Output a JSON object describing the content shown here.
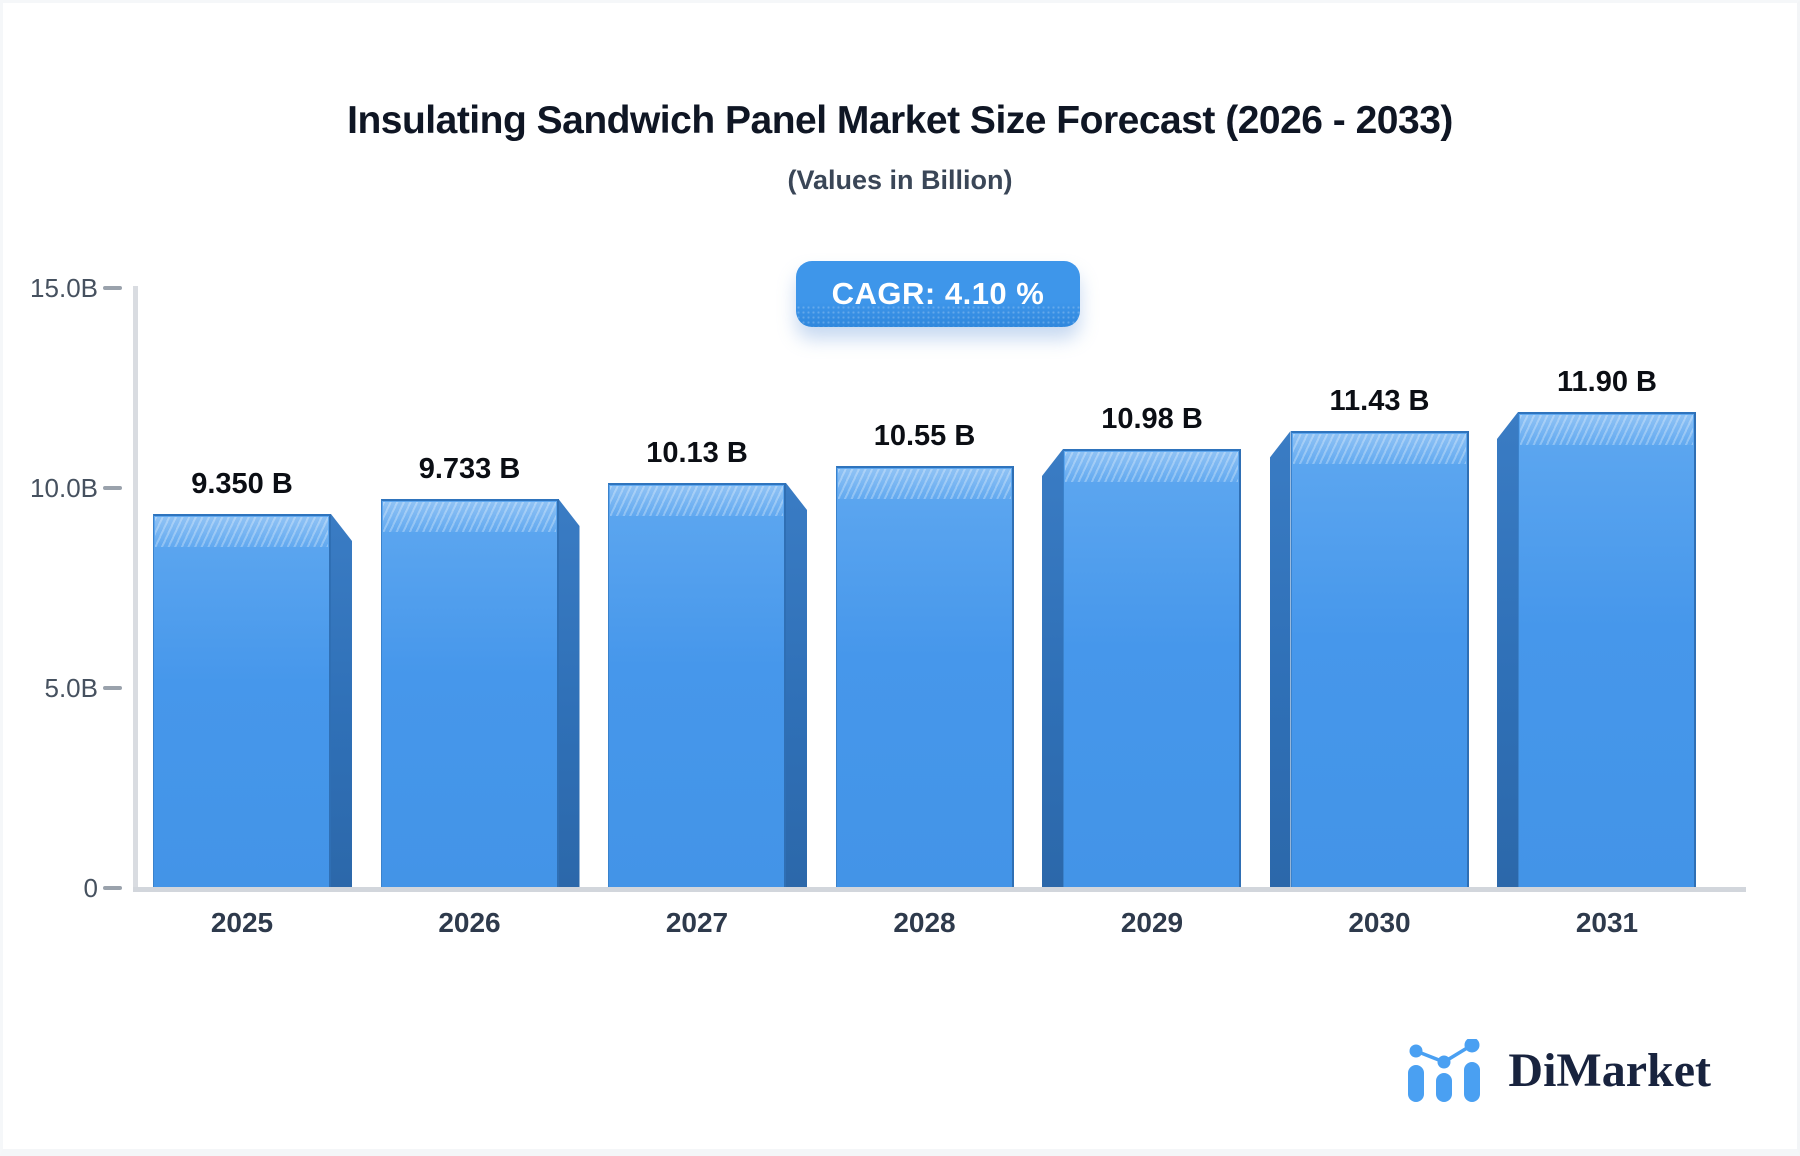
{
  "title": "Insulating Sandwich Panel Market Size Forecast (2026 - 2033)",
  "subtitle": "(Values in Billion)",
  "badge": {
    "label": "CAGR: 4.10 %"
  },
  "brand": {
    "name": "DiMarket",
    "icon": "bar-chart-logo-icon"
  },
  "colors": {
    "bar_main": "#4697EB",
    "bar_top_sheen": "#7AB8F3",
    "bar_side": "#2F70B7",
    "badge_bg": "#3E96EA",
    "axis_line": "#D9DCE1",
    "tick": "#9AA2AC",
    "y_label": "#46515F",
    "x_label": "#2E3A4C",
    "title_color": "#0F1624",
    "subtitle_color": "#3A4657",
    "logo_text": "#18233E",
    "logo_icon": "#4AA0F2"
  },
  "chart_data": {
    "type": "bar",
    "categories": [
      "2025",
      "2026",
      "2027",
      "2028",
      "2029",
      "2030",
      "2031"
    ],
    "values": [
      9.35,
      9.733,
      10.13,
      10.55,
      10.98,
      11.43,
      11.9
    ],
    "value_labels": [
      "9.350 B",
      "9.733 B",
      "10.13 B",
      "10.55 B",
      "10.98 B",
      "11.43 B",
      "11.90 B"
    ],
    "title": "Insulating Sandwich Panel Market Size Forecast (2026 - 2033)",
    "subtitle": "(Values in Billion)",
    "xlabel": "",
    "ylabel": "",
    "ylim": [
      0,
      15
    ],
    "yticks": [
      {
        "value": 15,
        "label": "15.0B"
      },
      {
        "value": 10,
        "label": "10.0B"
      },
      {
        "value": 5,
        "label": "5.0B"
      },
      {
        "value": 0,
        "label": "0"
      }
    ],
    "grid": false,
    "legend": false,
    "bar_style": "3d-extruded, vanishing point at center bar"
  }
}
